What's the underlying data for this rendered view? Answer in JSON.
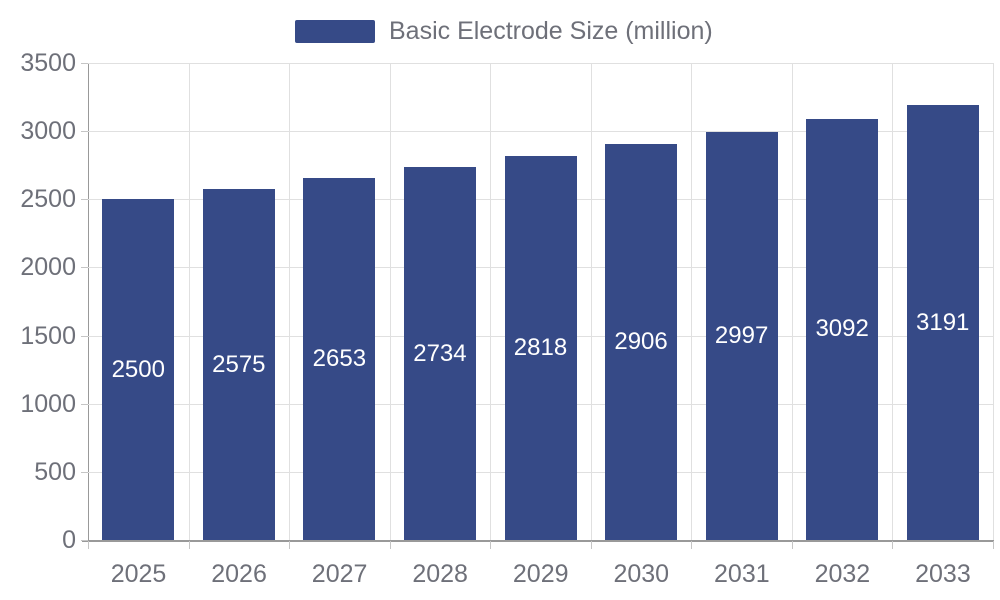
{
  "chart_data": {
    "type": "bar",
    "legend": "Basic Electrode Size (million)",
    "series_name": "Basic Electrode Size (million)",
    "categories": [
      "2025",
      "2026",
      "2027",
      "2028",
      "2029",
      "2030",
      "2031",
      "2032",
      "2033"
    ],
    "values": [
      2500,
      2575,
      2653,
      2734,
      2818,
      2906,
      2997,
      3092,
      3191
    ],
    "title": "",
    "xlabel": "",
    "ylabel": "",
    "ylim": [
      0,
      3500
    ],
    "yticks": [
      0,
      500,
      1000,
      1500,
      2000,
      2500,
      3000,
      3500
    ],
    "grid": true,
    "legend_position": "top-center",
    "value_label_position": "inside-center",
    "colors": {
      "bar": "#364A87",
      "axis_text": "#6E7079",
      "value_label": "#FFFFFF",
      "grid_line": "#E0E0E0",
      "axis_line": "#999999",
      "tick": "#C5C5C5",
      "background": "#FFFFFF"
    }
  }
}
